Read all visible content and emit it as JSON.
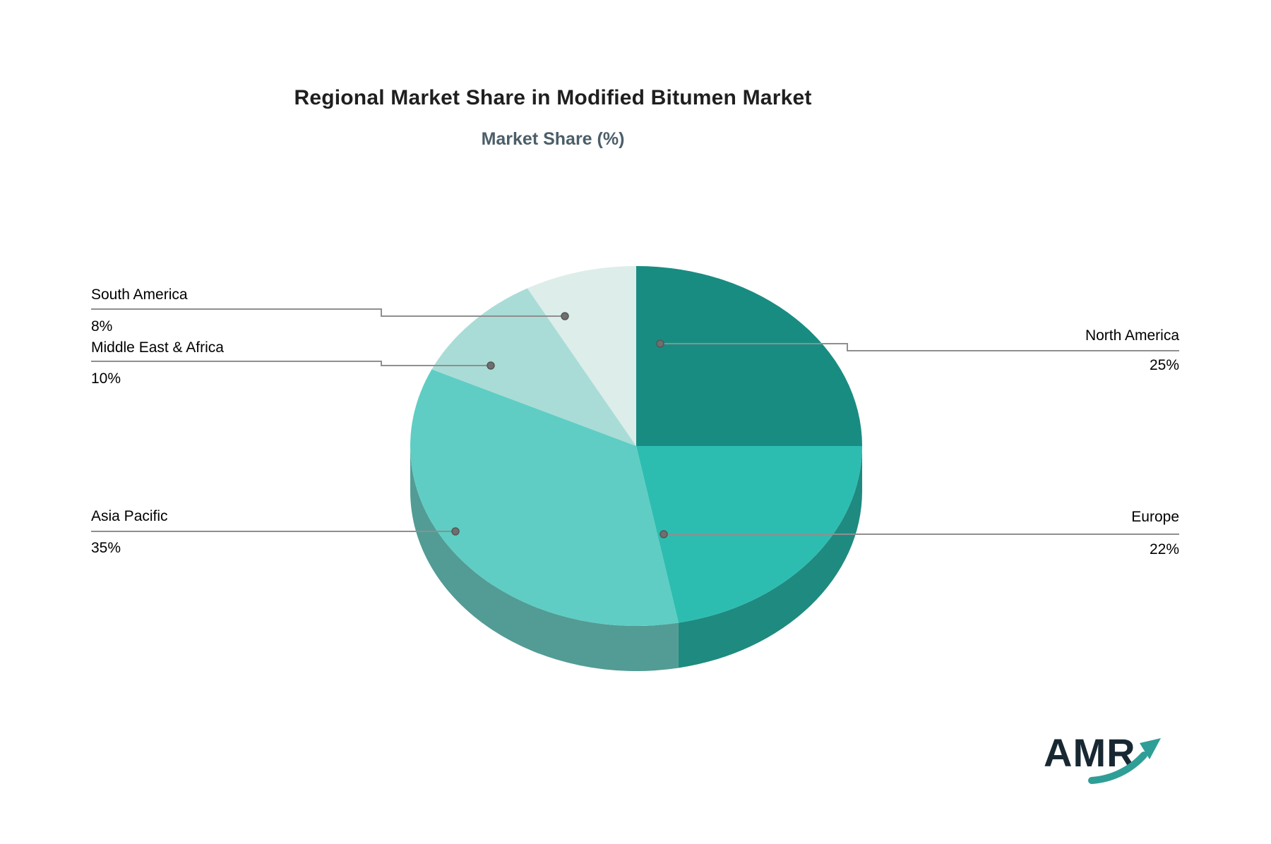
{
  "header": {
    "title": "Regional Market Share in Modified Bitumen Market",
    "subtitle": "Market Share (%)"
  },
  "chart_data": {
    "type": "pie",
    "style": "3d",
    "title": "Regional Market Share in Modified Bitumen Market",
    "subtitle": "Market Share (%)",
    "unit": "%",
    "direction": "clockwise",
    "start_angle_deg": 0,
    "legend_position": "callout-labels",
    "slices": [
      {
        "label": "North America",
        "value": 25,
        "pct_label": "25%",
        "color": "#198c82",
        "side_color": "#137c73"
      },
      {
        "label": "Europe",
        "value": 22,
        "pct_label": "22%",
        "color": "#2dbdb0",
        "side_color": "#1f8a80"
      },
      {
        "label": "Asia Pacific",
        "value": 35,
        "pct_label": "35%",
        "color": "#5fcdc3",
        "side_color": "#529c95"
      },
      {
        "label": "Middle East & Africa",
        "value": 10,
        "pct_label": "10%",
        "color": "#a9dcd7",
        "side_color": "#8cbbb5"
      },
      {
        "label": "South America",
        "value": 8,
        "pct_label": "8%",
        "color": "#ddedea",
        "side_color": "#bed0cc"
      }
    ]
  },
  "logo": {
    "text": "AMR",
    "arrow_color": "#2f9e96"
  },
  "colors": {
    "background": "#ffffff",
    "title_text": "#1f1f1f",
    "subtitle_text": "#4b5e69",
    "label_text": "#1c1c1c",
    "pct_text": "#9c9c9c",
    "leader_line": "#8f8f8f",
    "leader_dot": "#6f6f6f"
  }
}
